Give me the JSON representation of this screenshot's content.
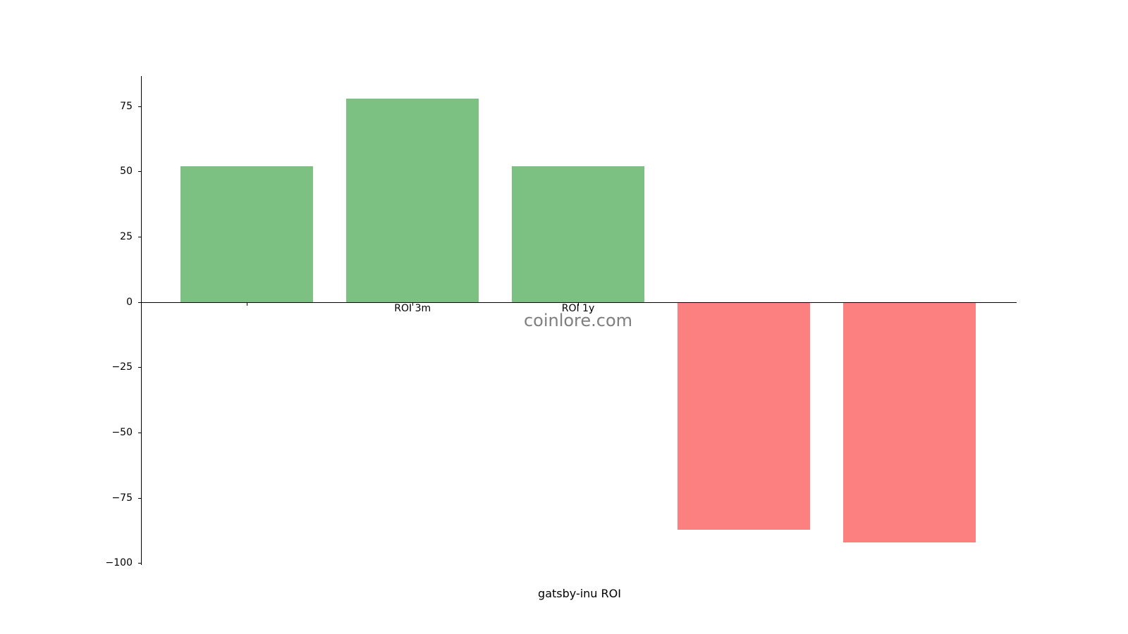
{
  "chart_data": {
    "type": "bar",
    "categories": [
      "",
      "ROI 3m",
      "ROI 1y",
      "",
      ""
    ],
    "values": [
      52,
      78,
      52,
      -87,
      -92
    ],
    "title": "",
    "xlabel": "gatsby-inu ROI",
    "ylabel": "",
    "ylim": [
      -100.5,
      86.5
    ],
    "xlim": [
      -0.64,
      4.64
    ],
    "bar_width": 0.8,
    "grid": false,
    "legend": false,
    "yticks": [
      {
        "value": 75,
        "label": "75"
      },
      {
        "value": 50,
        "label": "50"
      },
      {
        "value": 25,
        "label": "25"
      },
      {
        "value": 0,
        "label": "0"
      },
      {
        "value": -25,
        "label": "−25"
      },
      {
        "value": -50,
        "label": "−50"
      },
      {
        "value": -75,
        "label": "−75"
      },
      {
        "value": -100,
        "label": "−100"
      }
    ],
    "xticks": [
      {
        "position": 0,
        "label": ""
      },
      {
        "position": 1,
        "label": "ROI 3m"
      },
      {
        "position": 2,
        "label": "ROI 1y"
      }
    ],
    "colors": {
      "positive_bar": "#7cc181",
      "negative_bar": "#fd8080",
      "axis": "#000000",
      "tick_label": "#000000",
      "watermark": "#7f7f7f",
      "xlabel_text": "#000000"
    }
  },
  "watermark": {
    "text": "coinlore.com"
  }
}
